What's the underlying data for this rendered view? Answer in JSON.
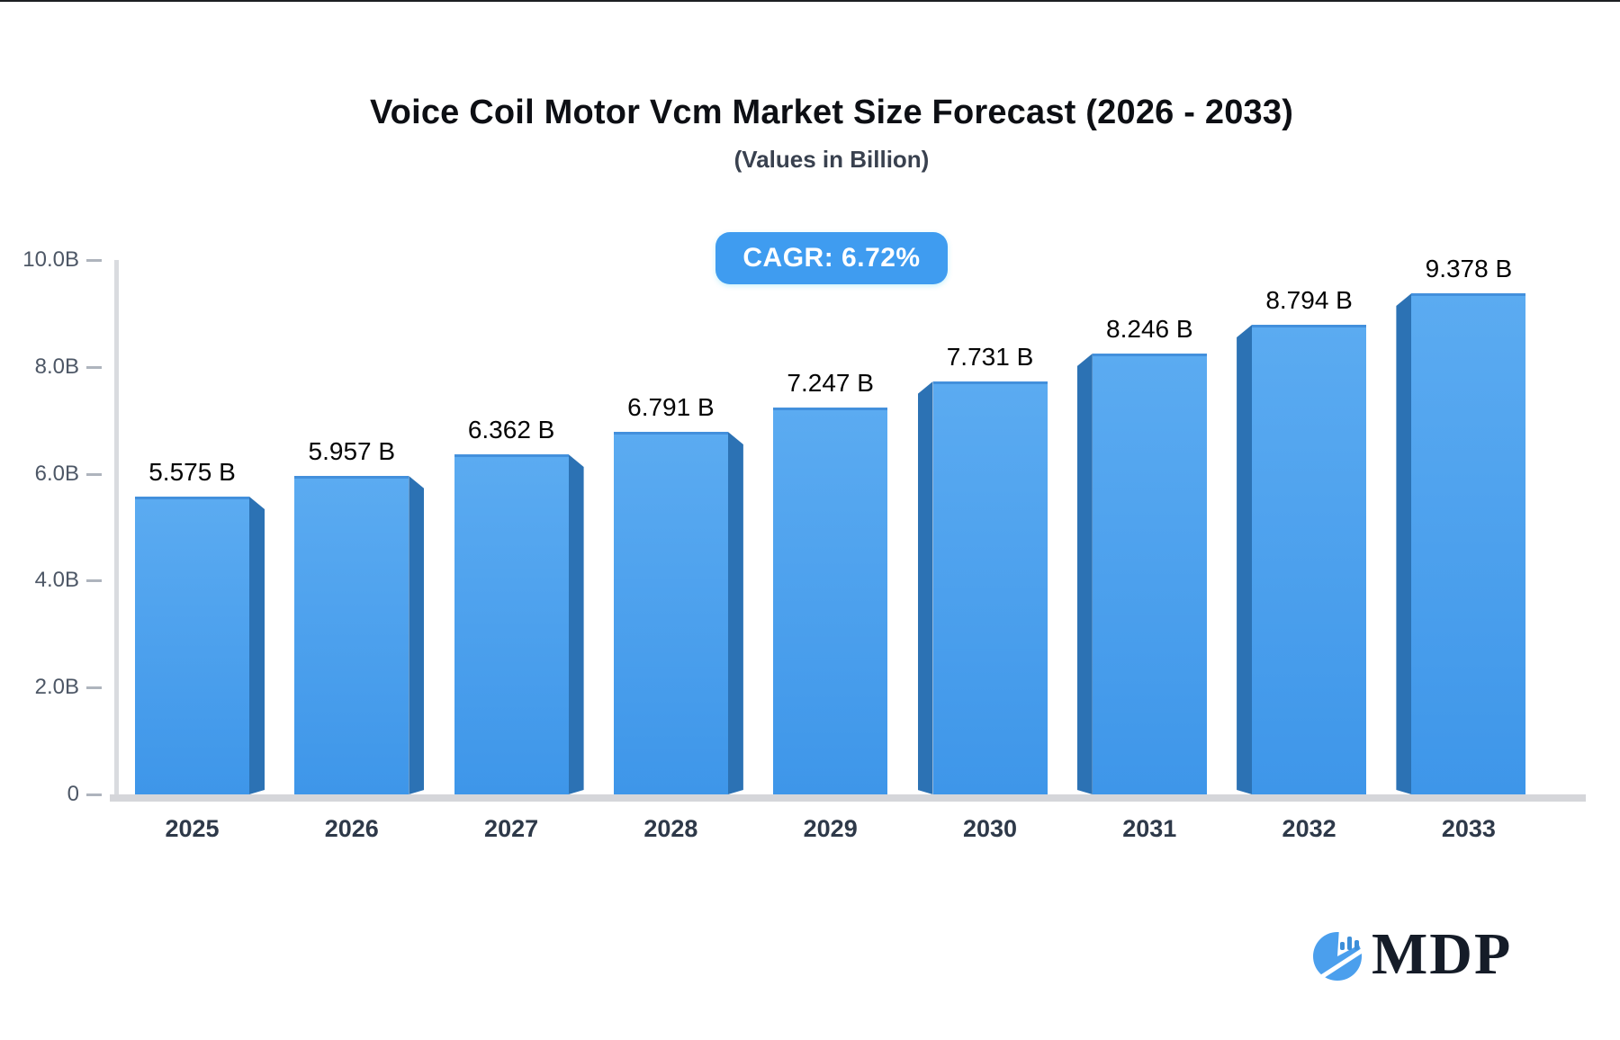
{
  "header": {
    "title": "Voice Coil Motor Vcm Market Size Forecast (2026 - 2033)",
    "subtitle": "(Values in Billion)"
  },
  "badge": {
    "label": "CAGR: 6.72%"
  },
  "chart_data": {
    "type": "bar",
    "title": "Voice Coil Motor Vcm Market Size Forecast (2026 - 2033)",
    "subtitle": "(Values in Billion)",
    "categories": [
      "2025",
      "2026",
      "2027",
      "2028",
      "2029",
      "2030",
      "2031",
      "2032",
      "2033"
    ],
    "values": [
      5.575,
      5.957,
      6.362,
      6.791,
      7.247,
      7.731,
      8.246,
      8.794,
      9.378
    ],
    "value_labels": [
      "5.575 B",
      "5.957 B",
      "6.362 B",
      "6.791 B",
      "7.247 B",
      "7.731 B",
      "8.246 B",
      "8.794 B",
      "9.378 B"
    ],
    "xlabel": "",
    "ylabel": "",
    "ylim": [
      0,
      10
    ],
    "grid": false,
    "legend": "none",
    "yticks": [
      {
        "value": 0,
        "label": "0"
      },
      {
        "value": 2,
        "label": "2.0B"
      },
      {
        "value": 4,
        "label": "4.0B"
      },
      {
        "value": 6,
        "label": "6.0B"
      },
      {
        "value": 8,
        "label": "8.0B"
      },
      {
        "value": 10,
        "label": "10.0B"
      }
    ],
    "colors": {
      "bar_top": "#5babf1",
      "bar_bottom": "#3e96e9",
      "bar_edge": "#4390dc",
      "bar_side": "#2c72b4",
      "axis_line": "#d9dbdf",
      "baseline": "#d5d6da",
      "tick_dash": "#aeb4bd",
      "badge_bg": "#3f9cf0",
      "title_text": "#0d0f14",
      "subtitle_text": "#39414f",
      "ytick_text": "#4d5766",
      "xtick_text": "#2e3949",
      "value_text": "#050505"
    }
  },
  "logo": {
    "text": "MDP",
    "blue": "#4b9fed",
    "bar_blue": "#3d8fd9",
    "text_color": "#151c28"
  }
}
